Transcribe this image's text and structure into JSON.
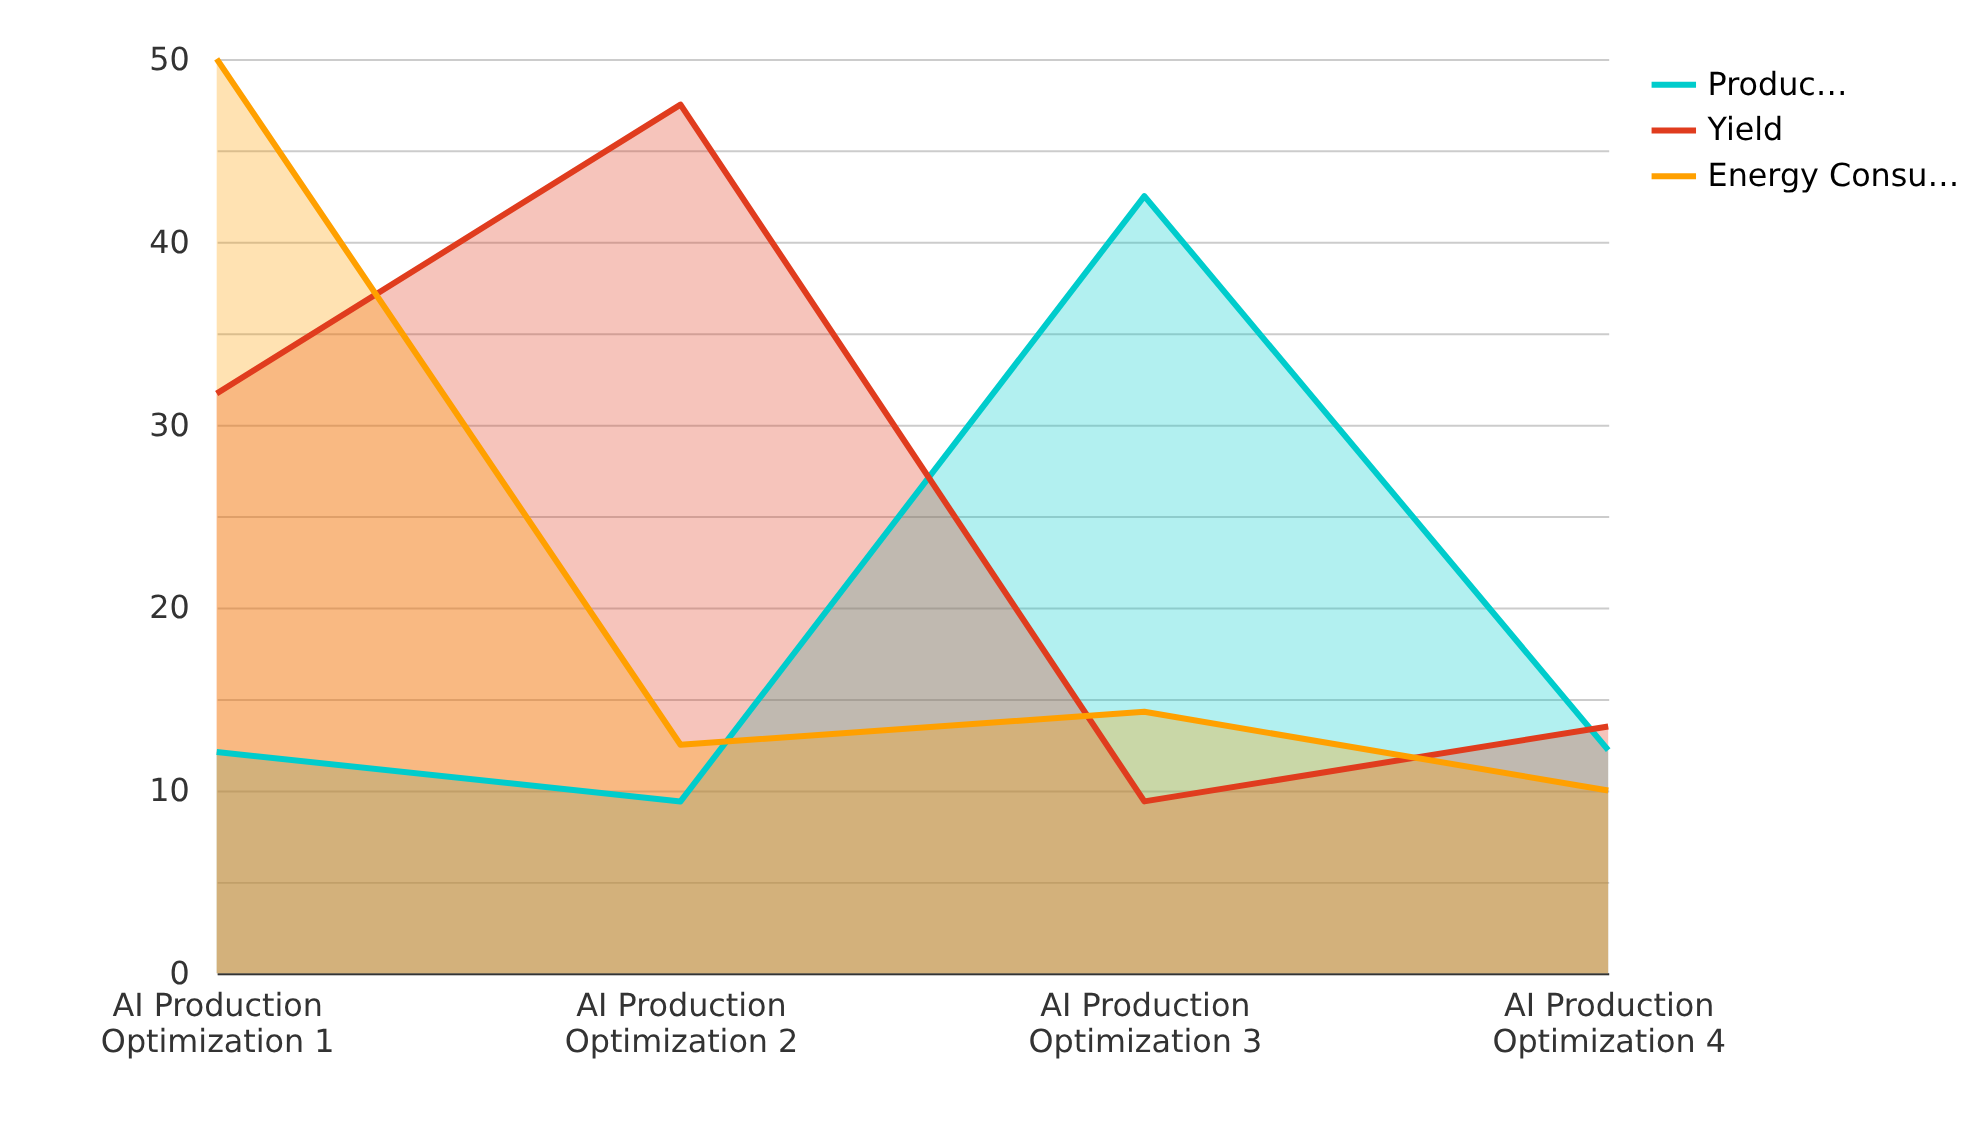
{
  "chart_data": {
    "type": "area",
    "categories": [
      "AI Production Optimization 1",
      "AI Production Optimization 2",
      "AI Production Optimization 3",
      "AI Production Optimization 4"
    ],
    "series": [
      {
        "name": "Produc…",
        "color": "#00cccc",
        "values": [
          12.1,
          9.4,
          42.5,
          12.2
        ]
      },
      {
        "name": "Yield",
        "color": "#e03c1e",
        "values": [
          31.7,
          47.5,
          9.4,
          13.5
        ]
      },
      {
        "name": "Energy Consu…",
        "color": "#ffa000",
        "values": [
          50,
          12.5,
          14.3,
          10
        ]
      }
    ],
    "ylim": [
      0,
      50
    ],
    "yticks": [
      0,
      {
        "value": 5,
        "label": null
      },
      10,
      {
        "value": 15,
        "label": null
      },
      20,
      {
        "value": 25,
        "label": null
      },
      30,
      {
        "value": 35,
        "label": null
      },
      40,
      {
        "value": 45,
        "label": null
      },
      50
    ],
    "grid": "y",
    "legend": "top right",
    "marker": "none",
    "line_style": "solid"
  }
}
